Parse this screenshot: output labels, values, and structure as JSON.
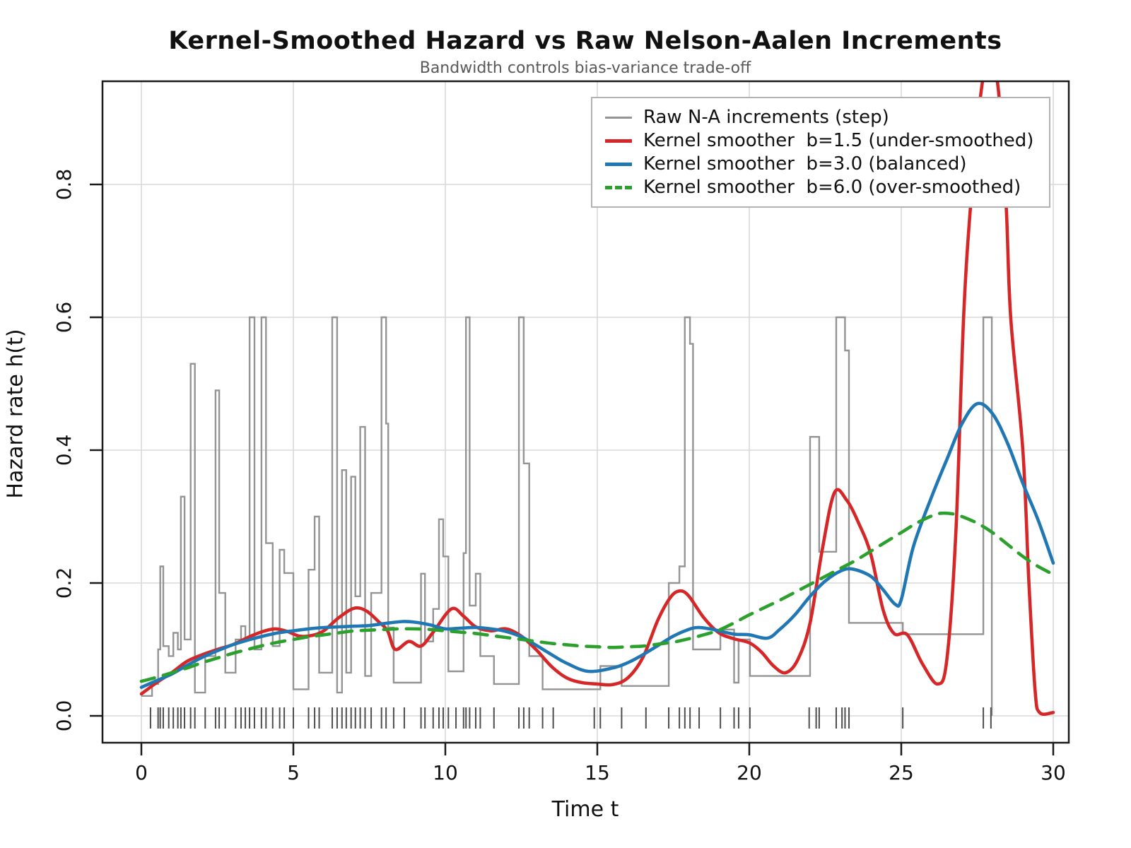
{
  "page": {
    "title": "Kernel-Smoothed Hazard vs Raw Nelson-Aalen Increments",
    "subtitle": "Bandwidth controls bias-variance trade-off"
  },
  "chart_data": {
    "type": "line",
    "title": "Kernel-Smoothed Hazard vs Raw Nelson-Aalen Increments",
    "subtitle": "Bandwidth controls bias-variance trade-off",
    "xlabel": "Time t",
    "ylabel": "Hazard rate h(t)",
    "xlim": [
      -1.2,
      31.2
    ],
    "ylim": [
      -0.035,
      0.955
    ],
    "grid": true,
    "legend_position": "upper right",
    "x_tick_values": [
      0,
      5,
      10,
      15,
      20,
      25,
      30
    ],
    "x_tick_labels": [
      "0",
      "5",
      "10",
      "15",
      "20",
      "25",
      "30"
    ],
    "y_tick_values": [
      0.0,
      0.2,
      0.4,
      0.6,
      0.8
    ],
    "y_tick_labels": [
      "0.0",
      "0.2",
      "0.4",
      "0.6",
      "0.8"
    ],
    "colors": {
      "raw_step": "#949494",
      "under_smoothed": "#d62728",
      "balanced": "#1f77b4",
      "over_smoothed": "#2ca02c",
      "grid": "#d9d9d9",
      "rug": "#4d4d4d",
      "border": "#1a1a1a"
    },
    "legend": {
      "items": [
        {
          "label": "Raw N-A increments (step)",
          "color": "#949494",
          "style": "solid",
          "weight": "thin"
        },
        {
          "label": "Kernel smoother  b=1.5 (under-smoothed)",
          "color": "#d62728",
          "style": "solid",
          "weight": "thick"
        },
        {
          "label": "Kernel smoother  b=3.0 (balanced)",
          "color": "#1f77b4",
          "style": "solid",
          "weight": "thick"
        },
        {
          "label": "Kernel smoother  b=6.0 (over-smoothed)",
          "color": "#2ca02c",
          "style": "dashed",
          "weight": "thick"
        }
      ]
    },
    "raw_steps": {
      "name": "Raw N-A increments (step)",
      "end_t": 27.98,
      "segments": [
        [
          0.0,
          0.03
        ],
        [
          0.35,
          0.048
        ],
        [
          0.55,
          0.1
        ],
        [
          0.62,
          0.225
        ],
        [
          0.72,
          0.105
        ],
        [
          0.9,
          0.09
        ],
        [
          1.05,
          0.125
        ],
        [
          1.2,
          0.1
        ],
        [
          1.3,
          0.33
        ],
        [
          1.42,
          0.115
        ],
        [
          1.62,
          0.53
        ],
        [
          1.76,
          0.035
        ],
        [
          2.1,
          0.09
        ],
        [
          2.44,
          0.49
        ],
        [
          2.56,
          0.185
        ],
        [
          2.76,
          0.065
        ],
        [
          3.1,
          0.115
        ],
        [
          3.28,
          0.135
        ],
        [
          3.42,
          0.115
        ],
        [
          3.56,
          0.6
        ],
        [
          3.72,
          0.1
        ],
        [
          3.95,
          0.6
        ],
        [
          4.1,
          0.26
        ],
        [
          4.32,
          0.105
        ],
        [
          4.55,
          0.25
        ],
        [
          4.7,
          0.215
        ],
        [
          5.0,
          0.04
        ],
        [
          5.5,
          0.22
        ],
        [
          5.7,
          0.3
        ],
        [
          5.85,
          0.065
        ],
        [
          6.28,
          0.6
        ],
        [
          6.44,
          0.035
        ],
        [
          6.6,
          0.37
        ],
        [
          6.74,
          0.065
        ],
        [
          6.9,
          0.36
        ],
        [
          7.04,
          0.18
        ],
        [
          7.2,
          0.435
        ],
        [
          7.36,
          0.06
        ],
        [
          7.56,
          0.185
        ],
        [
          7.9,
          0.6
        ],
        [
          8.05,
          0.44
        ],
        [
          8.12,
          0.133
        ],
        [
          8.3,
          0.05
        ],
        [
          9.2,
          0.214
        ],
        [
          9.33,
          0.112
        ],
        [
          9.6,
          0.161
        ],
        [
          9.79,
          0.296
        ],
        [
          9.93,
          0.24
        ],
        [
          10.1,
          0.067
        ],
        [
          10.6,
          0.245
        ],
        [
          10.68,
          0.6
        ],
        [
          10.8,
          0.166
        ],
        [
          11.0,
          0.214
        ],
        [
          11.15,
          0.09
        ],
        [
          11.6,
          0.048
        ],
        [
          12.42,
          0.6
        ],
        [
          12.58,
          0.38
        ],
        [
          12.76,
          0.09
        ],
        [
          13.2,
          0.04
        ],
        [
          15.1,
          0.075
        ],
        [
          15.8,
          0.045
        ],
        [
          17.35,
          0.2
        ],
        [
          17.7,
          0.225
        ],
        [
          17.88,
          0.6
        ],
        [
          18.05,
          0.56
        ],
        [
          18.15,
          0.1
        ],
        [
          19.05,
          0.13
        ],
        [
          19.5,
          0.05
        ],
        [
          19.65,
          0.115
        ],
        [
          20.02,
          0.06
        ],
        [
          22.0,
          0.42
        ],
        [
          22.3,
          0.247
        ],
        [
          22.86,
          0.6
        ],
        [
          23.15,
          0.55
        ],
        [
          23.28,
          0.14
        ],
        [
          25.05,
          0.123
        ],
        [
          27.7,
          0.6
        ]
      ]
    },
    "rug_times": [
      0.3,
      0.55,
      0.62,
      0.72,
      0.9,
      1.05,
      1.2,
      1.3,
      1.42,
      1.62,
      1.76,
      2.1,
      2.44,
      2.56,
      2.76,
      3.1,
      3.28,
      3.42,
      3.56,
      3.72,
      3.95,
      4.1,
      4.32,
      4.55,
      4.7,
      5.0,
      5.5,
      5.7,
      5.85,
      6.28,
      6.44,
      6.6,
      6.74,
      6.9,
      7.04,
      7.2,
      7.36,
      7.56,
      7.9,
      8.05,
      8.3,
      8.65,
      9.2,
      9.33,
      9.6,
      9.79,
      9.93,
      10.1,
      10.35,
      10.6,
      10.68,
      10.8,
      11.0,
      11.15,
      11.6,
      12.42,
      12.58,
      12.76,
      13.2,
      13.55,
      14.9,
      15.1,
      15.8,
      16.6,
      17.35,
      17.7,
      17.88,
      18.05,
      18.35,
      19.05,
      19.5,
      19.65,
      20.02,
      21.97,
      22.2,
      22.3,
      22.86,
      23.05,
      23.15,
      23.28,
      25.05,
      27.7,
      27.95
    ],
    "series": [
      {
        "name": "Kernel smoother  b=1.5 (under-smoothed)",
        "bandwidth": 1.5,
        "color": "#d62728",
        "style": "solid",
        "points": [
          [
            0,
            0.033
          ],
          [
            0.5,
            0.05
          ],
          [
            1,
            0.065
          ],
          [
            1.5,
            0.082
          ],
          [
            2,
            0.092
          ],
          [
            2.5,
            0.1
          ],
          [
            3,
            0.107
          ],
          [
            3.5,
            0.118
          ],
          [
            4,
            0.127
          ],
          [
            4.4,
            0.131
          ],
          [
            4.8,
            0.127
          ],
          [
            5.2,
            0.12
          ],
          [
            5.6,
            0.121
          ],
          [
            6,
            0.128
          ],
          [
            6.5,
            0.148
          ],
          [
            7,
            0.162
          ],
          [
            7.4,
            0.158
          ],
          [
            7.8,
            0.142
          ],
          [
            8.1,
            0.128
          ],
          [
            8.35,
            0.1
          ],
          [
            8.8,
            0.112
          ],
          [
            9.2,
            0.105
          ],
          [
            9.6,
            0.126
          ],
          [
            10.2,
            0.161
          ],
          [
            10.6,
            0.15
          ],
          [
            11,
            0.134
          ],
          [
            11.5,
            0.128
          ],
          [
            12,
            0.131
          ],
          [
            12.5,
            0.12
          ],
          [
            13,
            0.099
          ],
          [
            13.5,
            0.074
          ],
          [
            14,
            0.057
          ],
          [
            14.5,
            0.05
          ],
          [
            15,
            0.048
          ],
          [
            15.5,
            0.047
          ],
          [
            16,
            0.057
          ],
          [
            16.5,
            0.088
          ],
          [
            17,
            0.145
          ],
          [
            17.4,
            0.178
          ],
          [
            17.7,
            0.188
          ],
          [
            18,
            0.181
          ],
          [
            18.5,
            0.148
          ],
          [
            19,
            0.125
          ],
          [
            19.5,
            0.116
          ],
          [
            20,
            0.11
          ],
          [
            20.4,
            0.096
          ],
          [
            20.8,
            0.075
          ],
          [
            21.2,
            0.065
          ],
          [
            21.6,
            0.085
          ],
          [
            22,
            0.14
          ],
          [
            22.4,
            0.25
          ],
          [
            22.8,
            0.336
          ],
          [
            23.2,
            0.325
          ],
          [
            23.6,
            0.29
          ],
          [
            24,
            0.243
          ],
          [
            24.4,
            0.16
          ],
          [
            24.76,
            0.124
          ],
          [
            25.2,
            0.122
          ],
          [
            25.7,
            0.078
          ],
          [
            26.2,
            0.048
          ],
          [
            26.5,
            0.085
          ],
          [
            26.8,
            0.28
          ],
          [
            27.05,
            0.6
          ],
          [
            27.3,
            0.78
          ],
          [
            27.6,
            0.93
          ],
          [
            27.9,
            1.0
          ],
          [
            28.2,
            0.94
          ],
          [
            28.45,
            0.77
          ],
          [
            28.6,
            0.6
          ],
          [
            29,
            0.4
          ],
          [
            29.2,
            0.2
          ],
          [
            29.4,
            0.04
          ],
          [
            29.55,
            0.005
          ],
          [
            30,
            0.005
          ]
        ]
      },
      {
        "name": "Kernel smoother  b=3.0 (balanced)",
        "bandwidth": 3.0,
        "color": "#1f77b4",
        "style": "solid",
        "points": [
          [
            0,
            0.043
          ],
          [
            0.5,
            0.053
          ],
          [
            1,
            0.063
          ],
          [
            1.5,
            0.076
          ],
          [
            2,
            0.088
          ],
          [
            2.5,
            0.098
          ],
          [
            3,
            0.107
          ],
          [
            3.5,
            0.114
          ],
          [
            4,
            0.12
          ],
          [
            4.5,
            0.125
          ],
          [
            5,
            0.128
          ],
          [
            5.5,
            0.131
          ],
          [
            6,
            0.133
          ],
          [
            6.5,
            0.134
          ],
          [
            7,
            0.135
          ],
          [
            7.5,
            0.136
          ],
          [
            8,
            0.139
          ],
          [
            8.6,
            0.142
          ],
          [
            9,
            0.141
          ],
          [
            9.5,
            0.137
          ],
          [
            10,
            0.131
          ],
          [
            10.5,
            0.132
          ],
          [
            11,
            0.133
          ],
          [
            11.5,
            0.131
          ],
          [
            12,
            0.127
          ],
          [
            12.5,
            0.119
          ],
          [
            13,
            0.106
          ],
          [
            13.5,
            0.092
          ],
          [
            14,
            0.079
          ],
          [
            14.7,
            0.067
          ],
          [
            15.5,
            0.072
          ],
          [
            16,
            0.08
          ],
          [
            16.5,
            0.092
          ],
          [
            17,
            0.106
          ],
          [
            17.5,
            0.12
          ],
          [
            18,
            0.13
          ],
          [
            18.3,
            0.133
          ],
          [
            18.7,
            0.131
          ],
          [
            19,
            0.128
          ],
          [
            19.5,
            0.123
          ],
          [
            20,
            0.122
          ],
          [
            20.6,
            0.117
          ],
          [
            21,
            0.13
          ],
          [
            21.5,
            0.152
          ],
          [
            22,
            0.18
          ],
          [
            22.5,
            0.203
          ],
          [
            23,
            0.218
          ],
          [
            23.4,
            0.221
          ],
          [
            24,
            0.21
          ],
          [
            24.4,
            0.19
          ],
          [
            24.8,
            0.168
          ],
          [
            25,
            0.175
          ],
          [
            25.4,
            0.255
          ],
          [
            26,
            0.33
          ],
          [
            26.5,
            0.386
          ],
          [
            27,
            0.44
          ],
          [
            27.5,
            0.47
          ],
          [
            28,
            0.455
          ],
          [
            28.5,
            0.41
          ],
          [
            29,
            0.35
          ],
          [
            29.5,
            0.295
          ],
          [
            30,
            0.23
          ]
        ]
      },
      {
        "name": "Kernel smoother  b=6.0 (over-smoothed)",
        "bandwidth": 6.0,
        "color": "#2ca02c",
        "style": "dashed",
        "points": [
          [
            0,
            0.052
          ],
          [
            0.5,
            0.058
          ],
          [
            1,
            0.065
          ],
          [
            1.5,
            0.072
          ],
          [
            2,
            0.08
          ],
          [
            2.5,
            0.087
          ],
          [
            3,
            0.094
          ],
          [
            3.5,
            0.1
          ],
          [
            4,
            0.106
          ],
          [
            4.5,
            0.111
          ],
          [
            5,
            0.115
          ],
          [
            5.5,
            0.119
          ],
          [
            6,
            0.122
          ],
          [
            6.5,
            0.125
          ],
          [
            7,
            0.128
          ],
          [
            7.5,
            0.129
          ],
          [
            8,
            0.13
          ],
          [
            8.5,
            0.131
          ],
          [
            9,
            0.131
          ],
          [
            9.5,
            0.13
          ],
          [
            10,
            0.128
          ],
          [
            10.5,
            0.126
          ],
          [
            11,
            0.124
          ],
          [
            11.5,
            0.121
          ],
          [
            12,
            0.118
          ],
          [
            12.5,
            0.115
          ],
          [
            13,
            0.112
          ],
          [
            13.5,
            0.109
          ],
          [
            14,
            0.107
          ],
          [
            14.5,
            0.105
          ],
          [
            15,
            0.104
          ],
          [
            15.5,
            0.103
          ],
          [
            16,
            0.104
          ],
          [
            16.5,
            0.105
          ],
          [
            17,
            0.108
          ],
          [
            17.5,
            0.111
          ],
          [
            18,
            0.116
          ],
          [
            18.5,
            0.122
          ],
          [
            19,
            0.129
          ],
          [
            19.5,
            0.14
          ],
          [
            20,
            0.152
          ],
          [
            20.5,
            0.163
          ],
          [
            21,
            0.174
          ],
          [
            21.5,
            0.186
          ],
          [
            22,
            0.198
          ],
          [
            22.5,
            0.21
          ],
          [
            23,
            0.222
          ],
          [
            23.5,
            0.234
          ],
          [
            24,
            0.248
          ],
          [
            24.5,
            0.262
          ],
          [
            25,
            0.276
          ],
          [
            25.5,
            0.29
          ],
          [
            26,
            0.301
          ],
          [
            26.3,
            0.305
          ],
          [
            26.7,
            0.304
          ],
          [
            27,
            0.3
          ],
          [
            27.5,
            0.29
          ],
          [
            28,
            0.276
          ],
          [
            28.5,
            0.258
          ],
          [
            29,
            0.24
          ],
          [
            29.5,
            0.225
          ],
          [
            30,
            0.213
          ]
        ]
      }
    ]
  }
}
